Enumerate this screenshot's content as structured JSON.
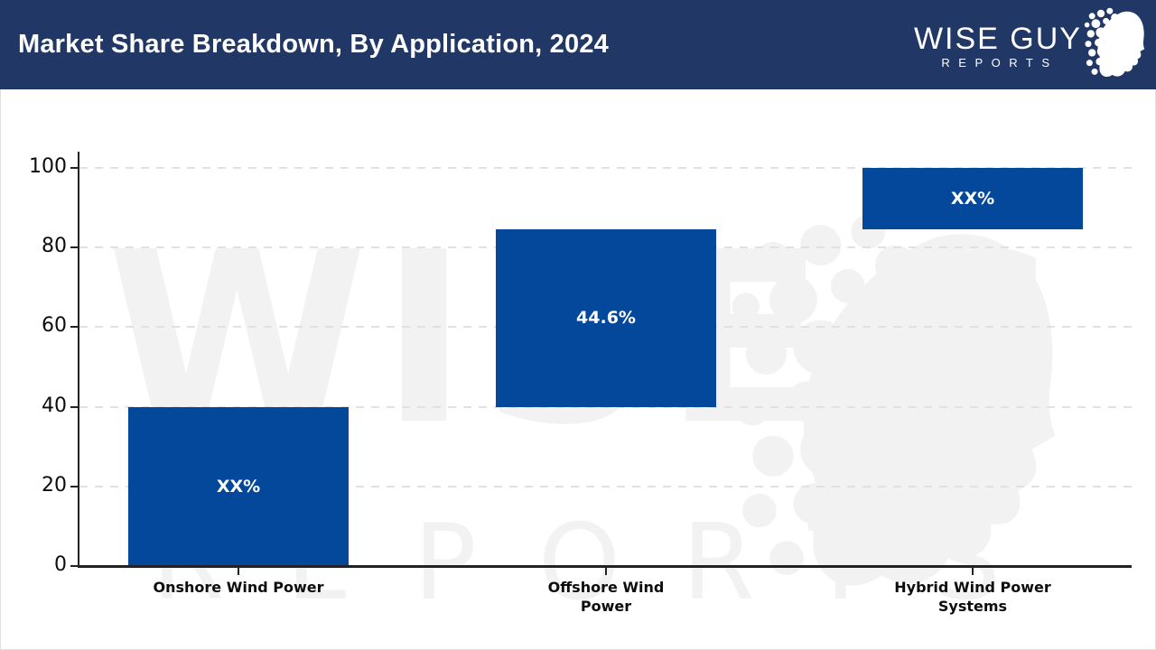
{
  "header": {
    "title": "Market Share Breakdown, By Application, 2024",
    "logo": {
      "line1": "WISE GUY",
      "line2": "REPORTS"
    }
  },
  "watermark": {
    "word1": "WISE",
    "word2": "GUY",
    "line2": "REPORTS"
  },
  "chart_data": {
    "type": "bar",
    "subtype": "waterfall",
    "title": "Market Share Breakdown, By Application, 2024",
    "categories": [
      "Onshore Wind Power",
      "Offshore Wind\nPower",
      "Hybrid Wind Power\nSystems"
    ],
    "segments": [
      {
        "category": "Onshore Wind Power",
        "start": 0,
        "end": 40,
        "label": "XX%"
      },
      {
        "category": "Offshore Wind Power",
        "start": 40,
        "end": 84.6,
        "label": "44.6%"
      },
      {
        "category": "Hybrid Wind Power Systems",
        "start": 84.6,
        "end": 100,
        "label": "XX%"
      }
    ],
    "ylim": [
      0,
      100
    ],
    "yticks": [
      0,
      20,
      40,
      60,
      80,
      100
    ],
    "xlabel": "",
    "ylabel": "",
    "grid": "horizontal-dashed",
    "legend_shown": false,
    "colors": {
      "bar": "#04489c",
      "header_background": "#213766",
      "grid": "#e1e1e1",
      "axis": "#222222",
      "watermark": "#f2f2f2"
    }
  }
}
